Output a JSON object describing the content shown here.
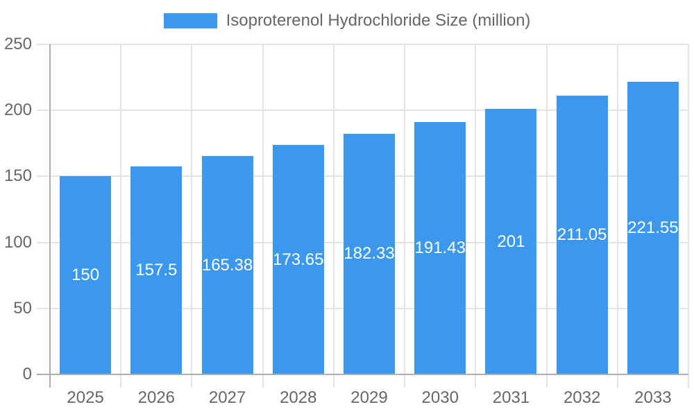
{
  "chart_data": {
    "type": "bar",
    "legend": "Isoproterenol Hydrochloride Size (million)",
    "legend_position": "top",
    "categories": [
      "2025",
      "2026",
      "2027",
      "2028",
      "2029",
      "2030",
      "2031",
      "2032",
      "2033"
    ],
    "values": [
      150,
      157.5,
      165.38,
      173.65,
      182.33,
      191.43,
      201,
      211.05,
      221.55
    ],
    "value_labels": [
      "150",
      "157.5",
      "165.38",
      "173.65",
      "182.33",
      "191.43",
      "201",
      "211.05",
      "221.55"
    ],
    "title": "",
    "xlabel": "",
    "ylabel": "",
    "ylim": [
      0,
      250
    ],
    "y_ticks": [
      0,
      50,
      100,
      150,
      200,
      250
    ],
    "grid": true,
    "colors": {
      "bar": "#3B98EC",
      "bar_label": "#ffffff",
      "tick_label": "#666666",
      "grid_line": "#e3e3e3",
      "axis_line": "#adadad"
    }
  }
}
